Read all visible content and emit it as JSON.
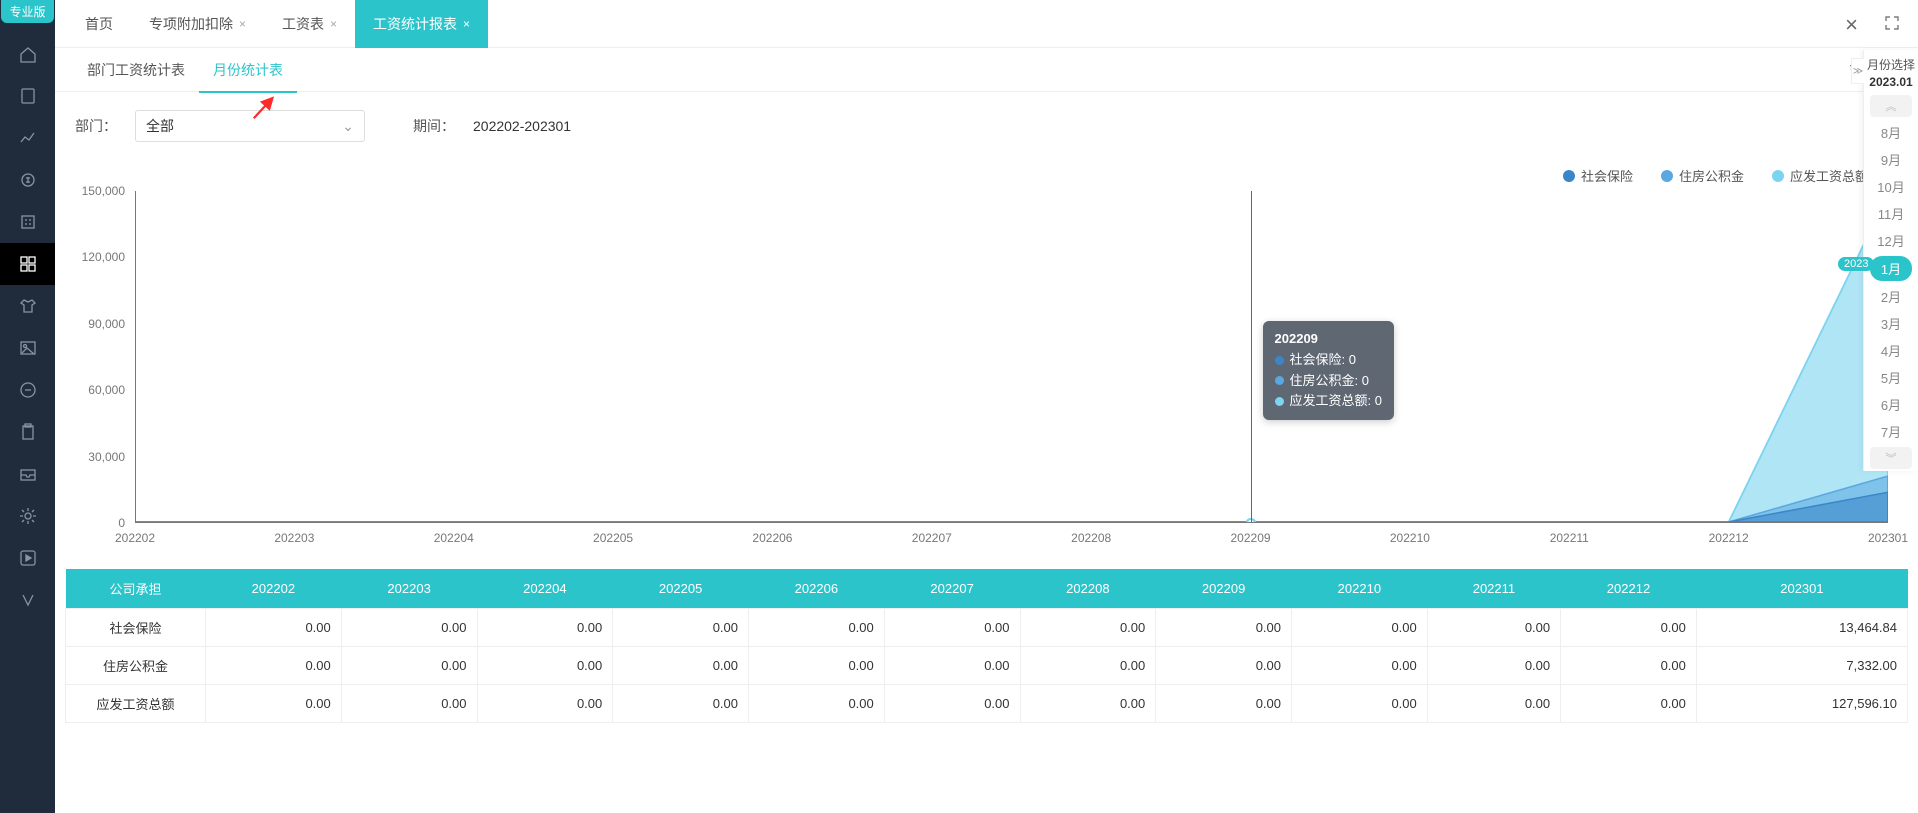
{
  "pro_badge": "专业版",
  "sidebar_icons": [
    "home",
    "doc",
    "chart",
    "money",
    "building",
    "grid",
    "shirt",
    "image",
    "etc",
    "clipboard",
    "inbox",
    "gear",
    "play",
    "v"
  ],
  "sidebar_active_index": 5,
  "top_tabs": {
    "items": [
      {
        "label": "首页",
        "closable": false
      },
      {
        "label": "专项附加扣除",
        "closable": true
      },
      {
        "label": "工资表",
        "closable": true
      },
      {
        "label": "工资统计报表",
        "closable": true
      }
    ],
    "active_index": 3
  },
  "sub_tabs": {
    "items": [
      "部门工资统计表",
      "月份统计表"
    ],
    "active_index": 1
  },
  "refresh_label": "刷新",
  "filters": {
    "dept_label": "部门：",
    "dept_value": "全部",
    "period_label": "期间：",
    "period_value": "202202-202301"
  },
  "chart": {
    "type": "area",
    "legend": [
      {
        "label": "社会保险",
        "color": "#3b86c8"
      },
      {
        "label": "住房公积金",
        "color": "#5aa8e0"
      },
      {
        "label": "应发工资总额",
        "color": "#7cd4f0"
      }
    ],
    "y": {
      "min": 0,
      "max": 150000,
      "step": 30000,
      "ticks": [
        0,
        30000,
        60000,
        90000,
        120000,
        150000
      ],
      "labels": [
        "0",
        "30,000",
        "60,000",
        "90,000",
        "120,000",
        "150,000"
      ]
    },
    "x_categories": [
      "202202",
      "202203",
      "202204",
      "202205",
      "202206",
      "202207",
      "202208",
      "202209",
      "202210",
      "202211",
      "202212",
      "202301"
    ],
    "series": [
      {
        "name": "社会保险",
        "color": "#3b86c8",
        "opacity": 0.6,
        "values": [
          0,
          0,
          0,
          0,
          0,
          0,
          0,
          0,
          0,
          0,
          0,
          13464.84
        ]
      },
      {
        "name": "住房公积金",
        "color": "#5aa8e0",
        "opacity": 0.55,
        "values": [
          0,
          0,
          0,
          0,
          0,
          0,
          0,
          0,
          0,
          0,
          0,
          20796.84
        ]
      },
      {
        "name": "应发工资总额",
        "color": "#7cd4f0",
        "opacity": 0.6,
        "values": [
          0,
          0,
          0,
          0,
          0,
          0,
          0,
          0,
          0,
          0,
          0,
          148392.94
        ]
      }
    ],
    "highlight_index": 7,
    "tooltip": {
      "title": "202209",
      "rows": [
        {
          "color": "#3b86c8",
          "label": "社会保险",
          "value": "0"
        },
        {
          "color": "#5aa8e0",
          "label": "住房公积金",
          "value": "0"
        },
        {
          "color": "#7cd4f0",
          "label": "应发工资总额",
          "value": "0"
        }
      ]
    }
  },
  "table": {
    "header_first": "公司承担",
    "columns": [
      "202202",
      "202203",
      "202204",
      "202205",
      "202206",
      "202207",
      "202208",
      "202209",
      "202210",
      "202211",
      "202212",
      "202301"
    ],
    "rows": [
      {
        "label": "社会保险",
        "cells": [
          "0.00",
          "0.00",
          "0.00",
          "0.00",
          "0.00",
          "0.00",
          "0.00",
          "0.00",
          "0.00",
          "0.00",
          "0.00",
          "13,464.84"
        ]
      },
      {
        "label": "住房公积金",
        "cells": [
          "0.00",
          "0.00",
          "0.00",
          "0.00",
          "0.00",
          "0.00",
          "0.00",
          "0.00",
          "0.00",
          "0.00",
          "0.00",
          "7,332.00"
        ]
      },
      {
        "label": "应发工资总额",
        "cells": [
          "0.00",
          "0.00",
          "0.00",
          "0.00",
          "0.00",
          "0.00",
          "0.00",
          "0.00",
          "0.00",
          "0.00",
          "0.00",
          "127,596.10"
        ]
      }
    ]
  },
  "month_panel": {
    "title": "月份选择",
    "selected": "2023.01",
    "year_badge": "2023",
    "items": [
      "8月",
      "9月",
      "10月",
      "11月",
      "12月",
      "1月",
      "2月",
      "3月",
      "4月",
      "5月",
      "6月",
      "7月"
    ],
    "current_index": 5
  }
}
